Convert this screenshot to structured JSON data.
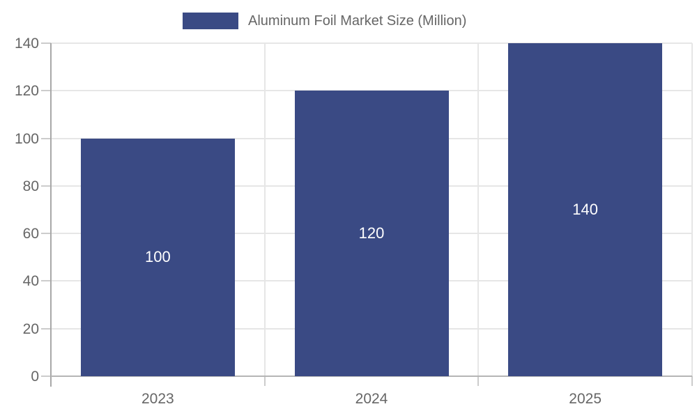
{
  "legend": {
    "label": "Aluminum Foil Market Size (Million)",
    "swatch_color": "#3a4a84"
  },
  "chart_data": {
    "type": "bar",
    "categories": [
      "2023",
      "2024",
      "2025"
    ],
    "series": [
      {
        "name": "Aluminum Foil Market Size (Million)",
        "values": [
          100,
          120,
          140
        ]
      }
    ],
    "value_labels": [
      "100",
      "120",
      "140"
    ],
    "title": "",
    "xlabel": "",
    "ylabel": "",
    "ylim": [
      0,
      140
    ],
    "yticks": [
      0,
      20,
      40,
      60,
      80,
      100,
      120,
      140
    ],
    "grid": true,
    "legend_position": "top",
    "bar_color": "#3a4a84",
    "value_label_color": "#ffffff"
  },
  "colors": {
    "gridline": "#e6e6e6",
    "y_axis_line": "#a8a8a8",
    "x_axis_line": "#b5b5b5",
    "tick_mark": "#cccccc",
    "label_text": "#666666",
    "background": "#ffffff"
  }
}
